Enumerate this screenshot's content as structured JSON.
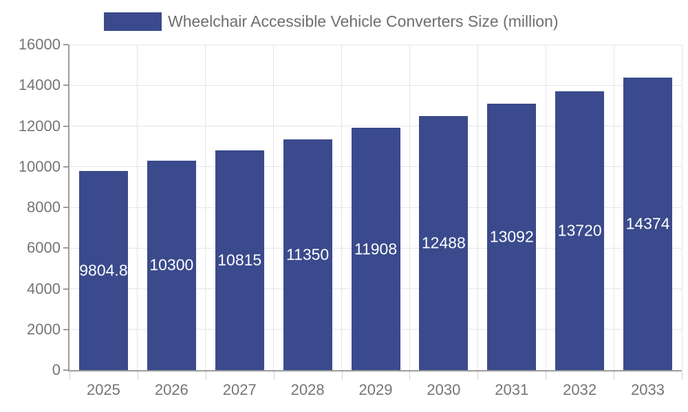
{
  "legend": {
    "label": "Wheelchair Accessible Vehicle Converters Size (million)",
    "swatch_color": "#3A4A8C"
  },
  "chart_data": {
    "type": "bar",
    "title": "Wheelchair Accessible Vehicle Converters Size (million)",
    "categories": [
      "2025",
      "2026",
      "2027",
      "2028",
      "2029",
      "2030",
      "2031",
      "2032",
      "2033"
    ],
    "values": [
      9804.8,
      10300,
      10815,
      11350,
      11908,
      12488,
      13092,
      13720,
      14374
    ],
    "bar_labels": [
      "9804.8",
      "10300",
      "10815",
      "11350",
      "11908",
      "12488",
      "13092",
      "13720",
      "14374"
    ],
    "xlabel": "",
    "ylabel": "",
    "ylim": [
      0,
      16000
    ],
    "ytick_step": 2000,
    "ytick_labels": [
      "0",
      "2000",
      "4000",
      "6000",
      "8000",
      "10000",
      "12000",
      "14000",
      "16000"
    ],
    "grid": true,
    "legend_position": "top",
    "colors": {
      "bar": "#3A4A8C",
      "bar_label": "#FFFFFF",
      "axis": "#9C9C9C",
      "gridline": "#E5E5E5",
      "tick_label": "#757575",
      "legend_text": "#6E6E6E"
    }
  }
}
